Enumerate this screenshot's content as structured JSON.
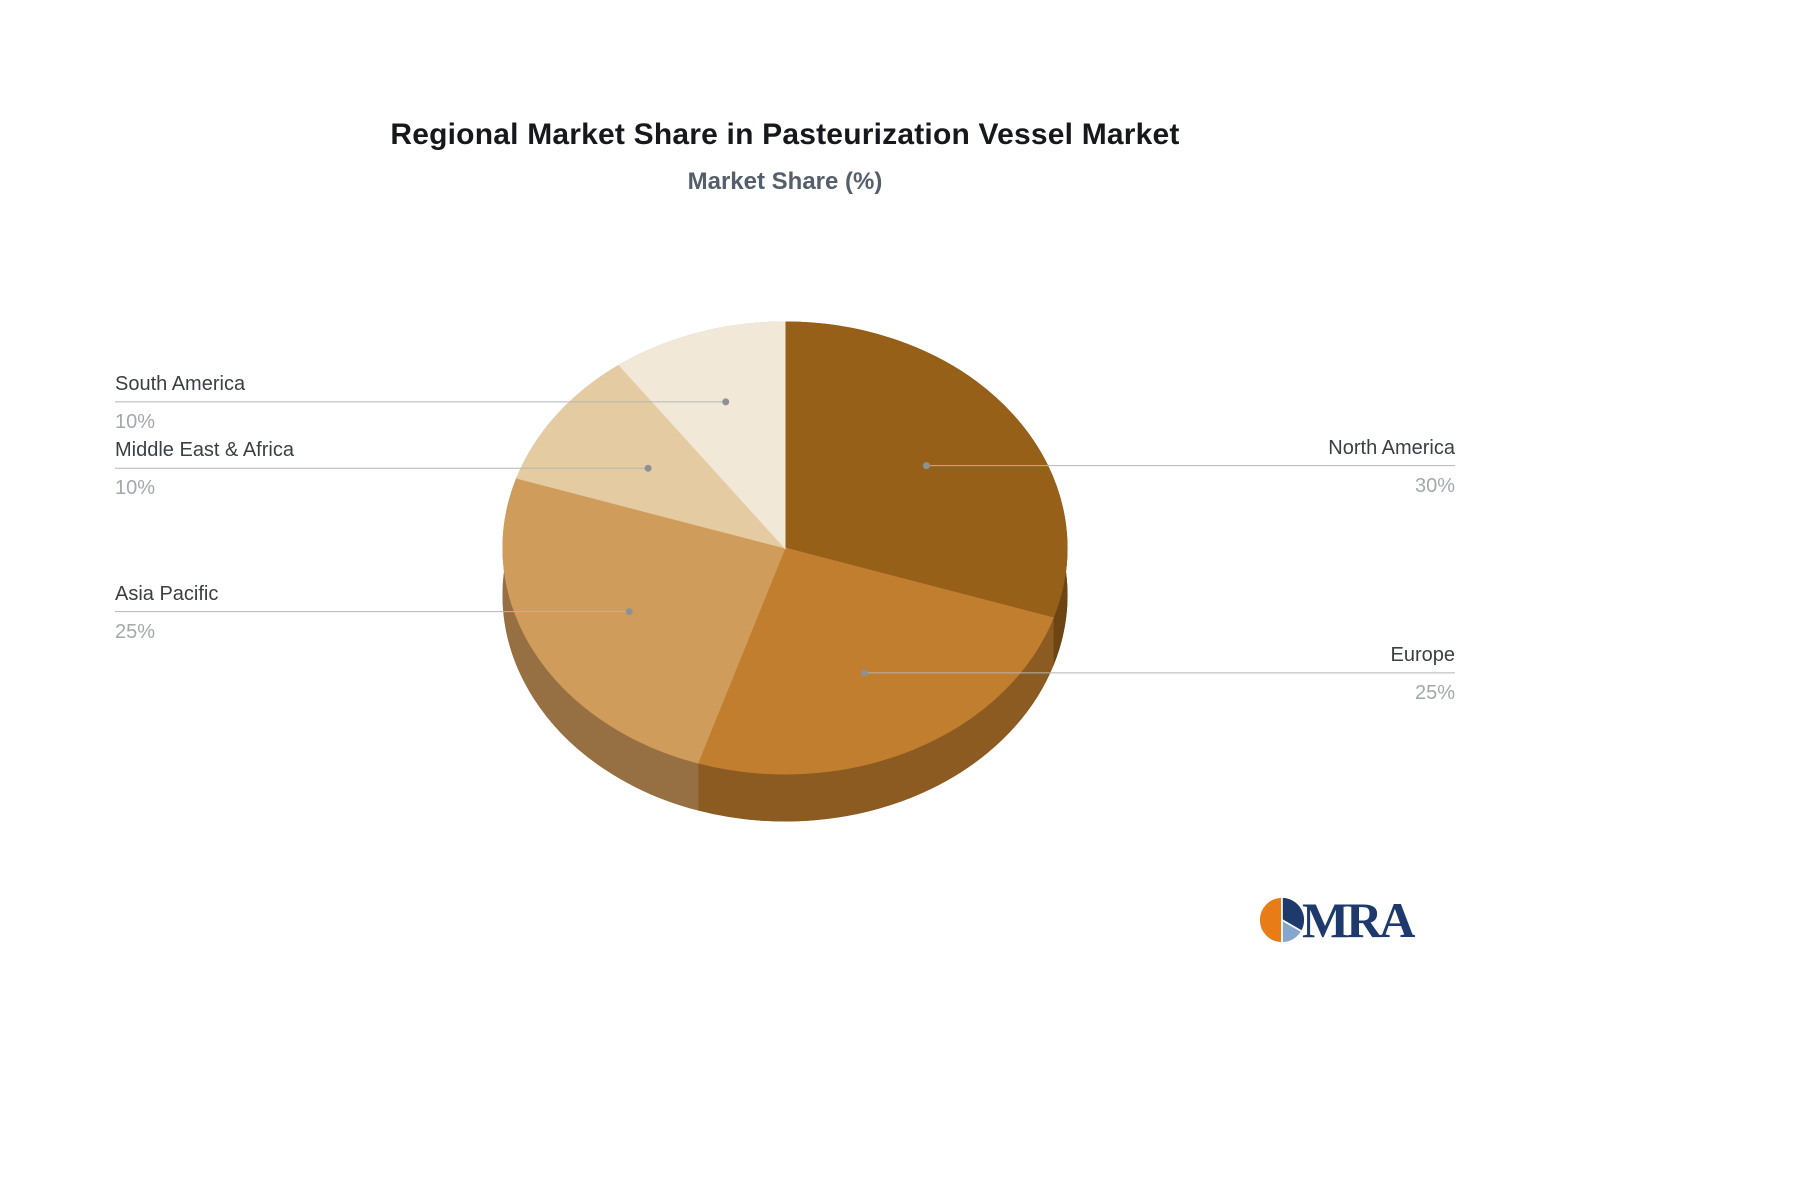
{
  "title": "Regional Market Share in Pasteurization Vessel Market",
  "subtitle": "Market Share (%)",
  "logo_text": "MRA",
  "chart_data": {
    "type": "pie",
    "title": "Regional Market Share in Pasteurization Vessel Market",
    "subtitle": "Market Share (%)",
    "unit": "%",
    "start_angle": "top",
    "direction": "clockwise",
    "style": "3d",
    "legend": "off",
    "slices": [
      {
        "label": "North America",
        "value": 30,
        "pct_text": "30%",
        "color": "#966019"
      },
      {
        "label": "Europe",
        "value": 25,
        "pct_text": "25%",
        "color": "#c17e2f"
      },
      {
        "label": "Asia Pacific",
        "value": 25,
        "pct_text": "25%",
        "color": "#d09c5c"
      },
      {
        "label": "Middle East & Africa",
        "value": 10,
        "pct_text": "10%",
        "color": "#e5cba2"
      },
      {
        "label": "South America",
        "value": 10,
        "pct_text": "10%",
        "color": "#f2e8d7"
      }
    ],
    "label_line_color": "#b5b5b5",
    "label_dot_color": "#8c9196",
    "label_text_color": "#3a3f45",
    "label_pct_color": "#a3a8ae"
  }
}
